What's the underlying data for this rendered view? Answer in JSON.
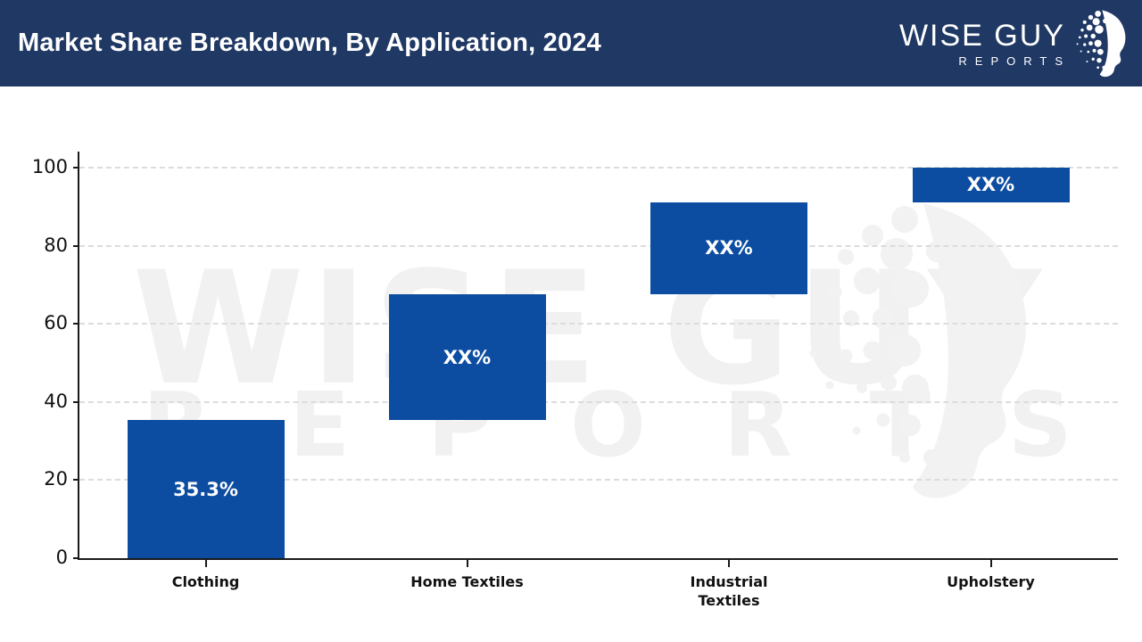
{
  "header": {
    "title": "Market Share Breakdown, By Application, 2024",
    "background_color": "#1f3864",
    "logo": {
      "line1": "WISE GUY",
      "line2": "REPORTS"
    }
  },
  "watermark": {
    "line1": "WISE GUY",
    "line2": "REPORTS"
  },
  "chart_data": {
    "type": "bar",
    "subtype": "waterfall-segments",
    "title": "Market Share Breakdown, By Application, 2024",
    "categories": [
      "Clothing",
      "Home Textiles",
      "Industrial Textiles",
      "Upholstery"
    ],
    "category_lines": [
      [
        "Clothing"
      ],
      [
        "Home Textiles"
      ],
      [
        "Industrial",
        "Textiles"
      ],
      [
        "Upholstery"
      ]
    ],
    "segments": [
      {
        "category": "Clothing",
        "start": 0,
        "end": 35.3,
        "label": "35.3%"
      },
      {
        "category": "Home Textiles",
        "start": 35.3,
        "end": 67.5,
        "label": "XX%"
      },
      {
        "category": "Industrial Textiles",
        "start": 67.5,
        "end": 91.2,
        "label": "XX%"
      },
      {
        "category": "Upholstery",
        "start": 91.2,
        "end": 100,
        "label": "XX%"
      }
    ],
    "yticks": [
      0,
      20,
      40,
      60,
      80,
      100
    ],
    "ylim": [
      0,
      104
    ],
    "xlabel": "",
    "ylabel": "",
    "grid": "horizontal-dashed",
    "legend": "none",
    "bar_color": "#0d4da1",
    "bar_label_color": "#ffffff",
    "axis_color": "#1a1a1a",
    "gridline_color": "#dcdcdc"
  }
}
